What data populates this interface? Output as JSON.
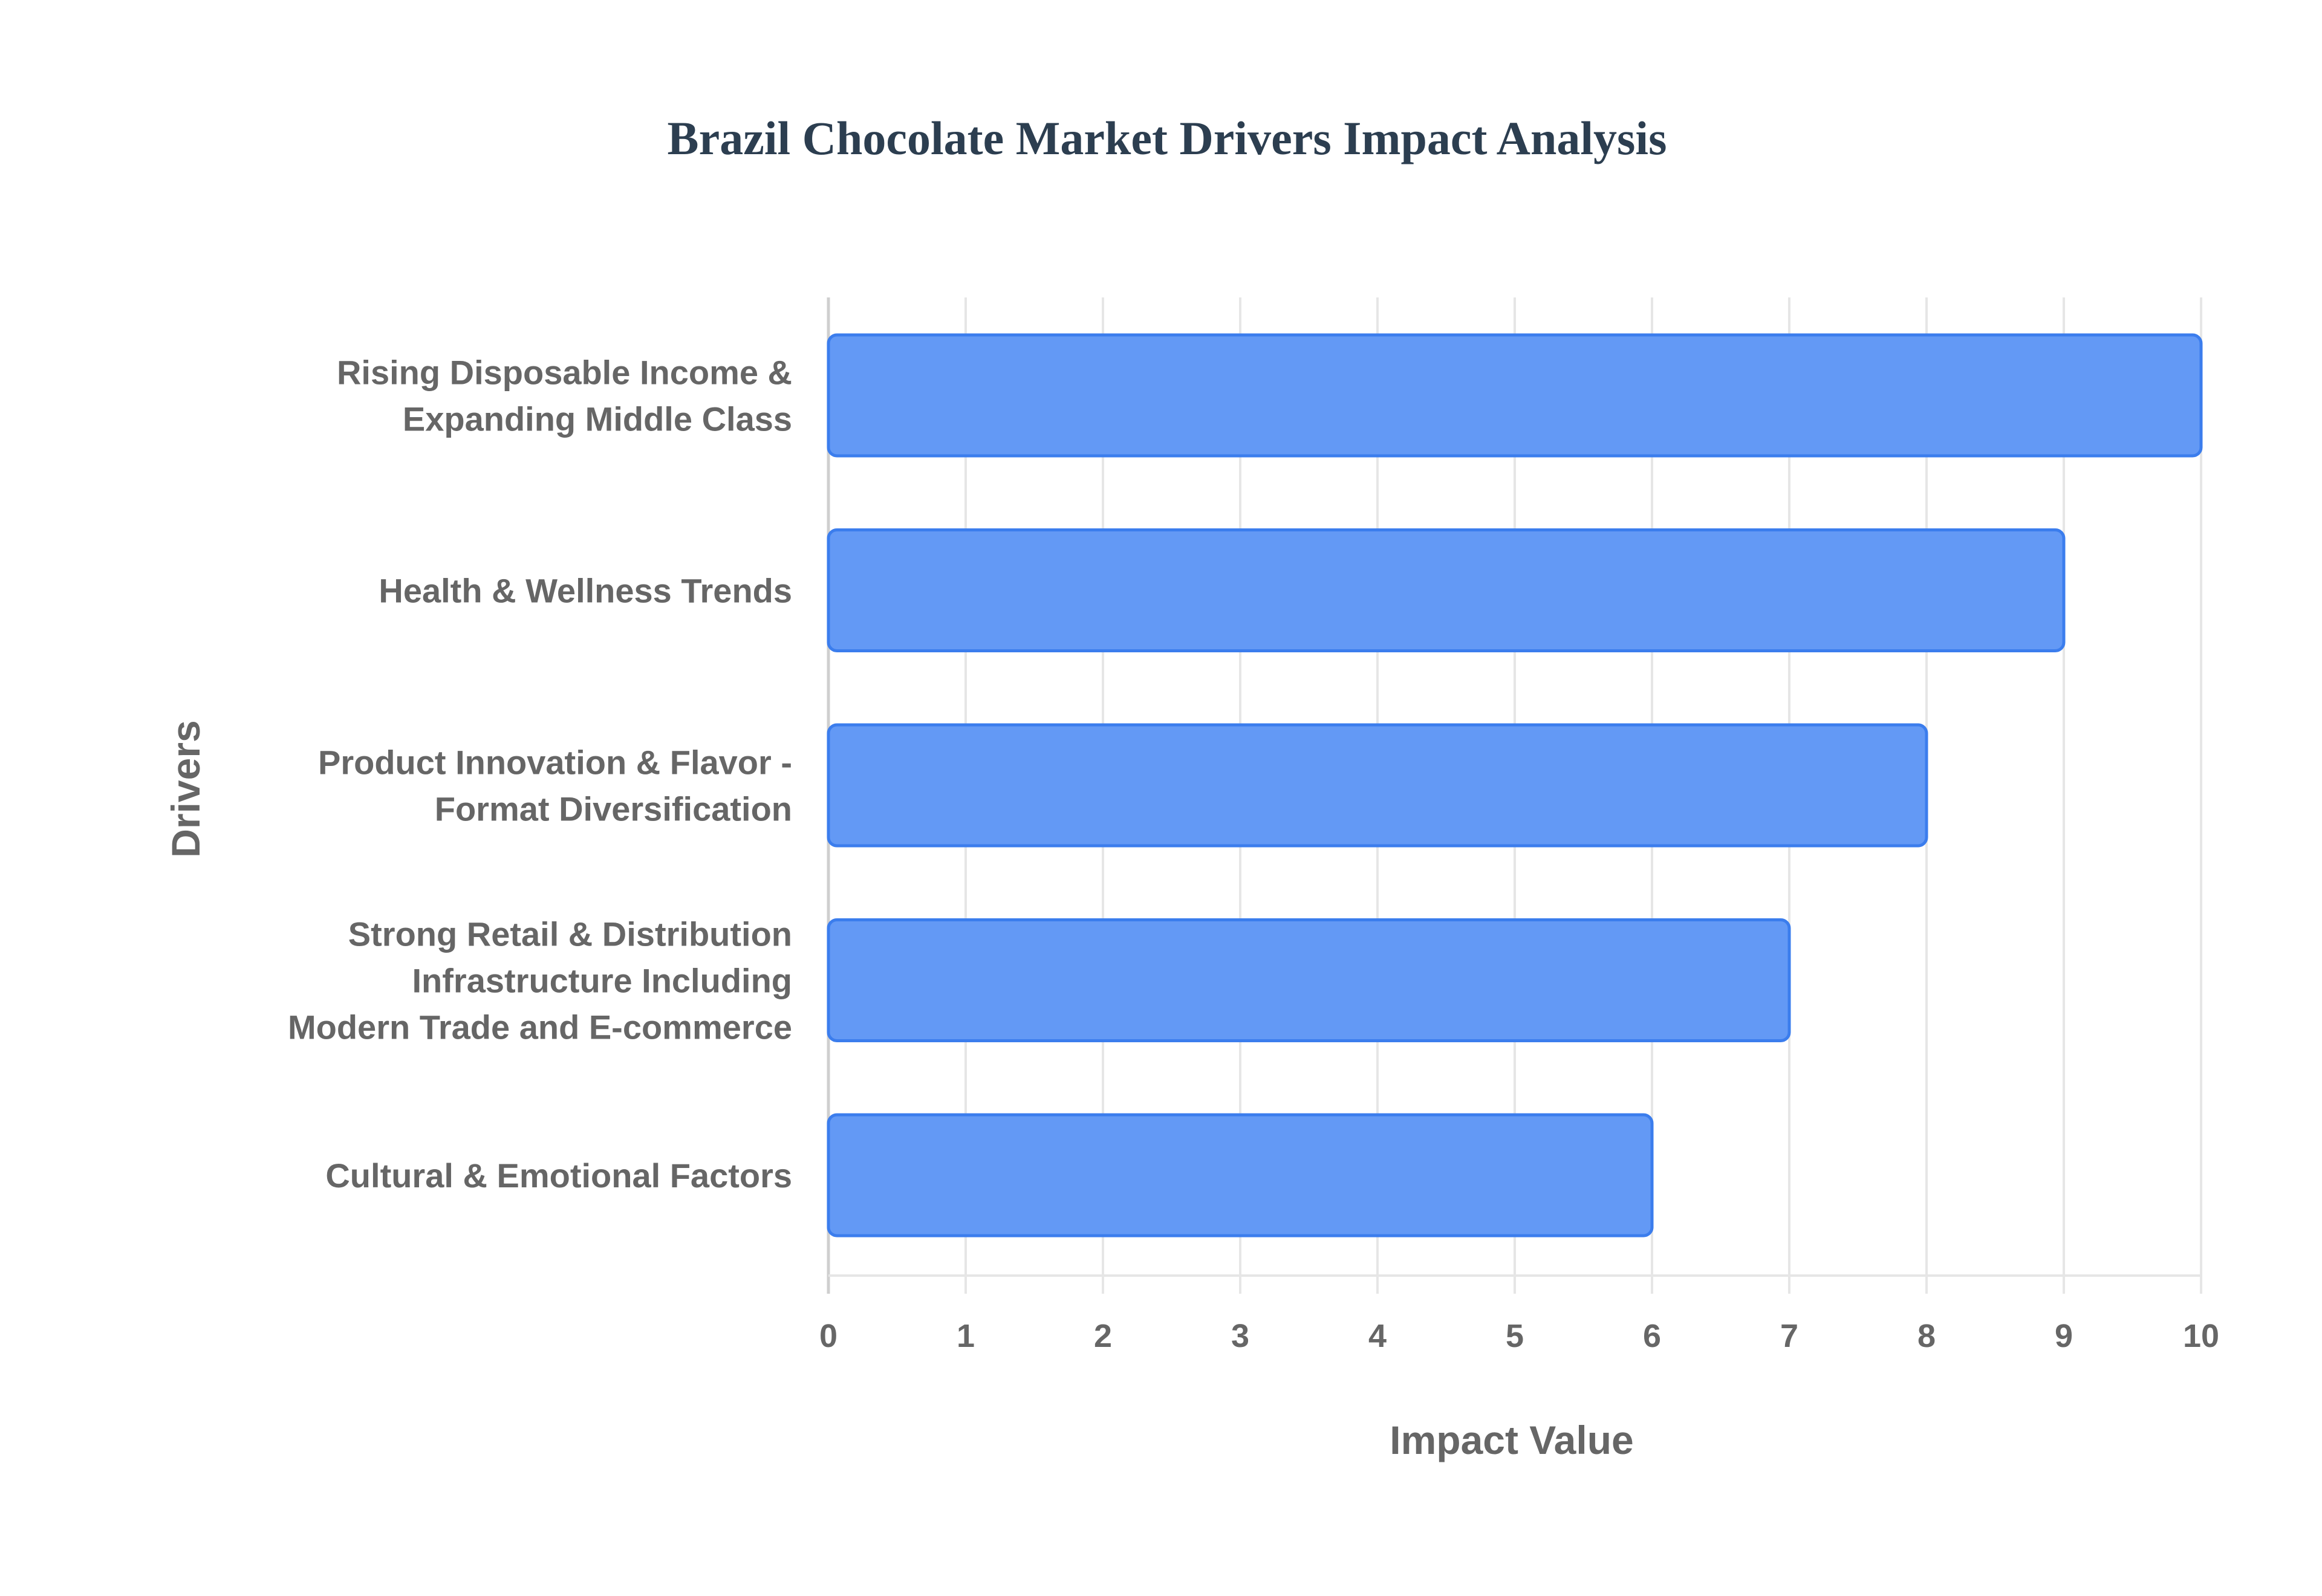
{
  "chart_data": {
    "type": "bar",
    "orientation": "horizontal",
    "title": "Brazil Chocolate Market Drivers Impact Analysis",
    "xlabel": "Impact Value",
    "ylabel": "Drivers",
    "xlim": [
      0,
      10
    ],
    "xticks": [
      "0",
      "1",
      "2",
      "3",
      "4",
      "5",
      "6",
      "7",
      "8",
      "9",
      "10"
    ],
    "grid": true,
    "categories": [
      [
        "Rising Disposable Income &",
        "Expanding Middle Class"
      ],
      [
        "Health & Wellness Trends"
      ],
      [
        "Product Innovation & Flavor -",
        "Format Diversification"
      ],
      [
        "Strong Retail & Distribution",
        "Infrastructure Including",
        "Modern Trade and E-commerce"
      ],
      [
        "Cultural & Emotional Factors"
      ]
    ],
    "values": [
      10,
      9,
      8,
      7,
      6
    ],
    "colors": {
      "fill": "#6399f5",
      "border": "#3b7ded"
    }
  }
}
